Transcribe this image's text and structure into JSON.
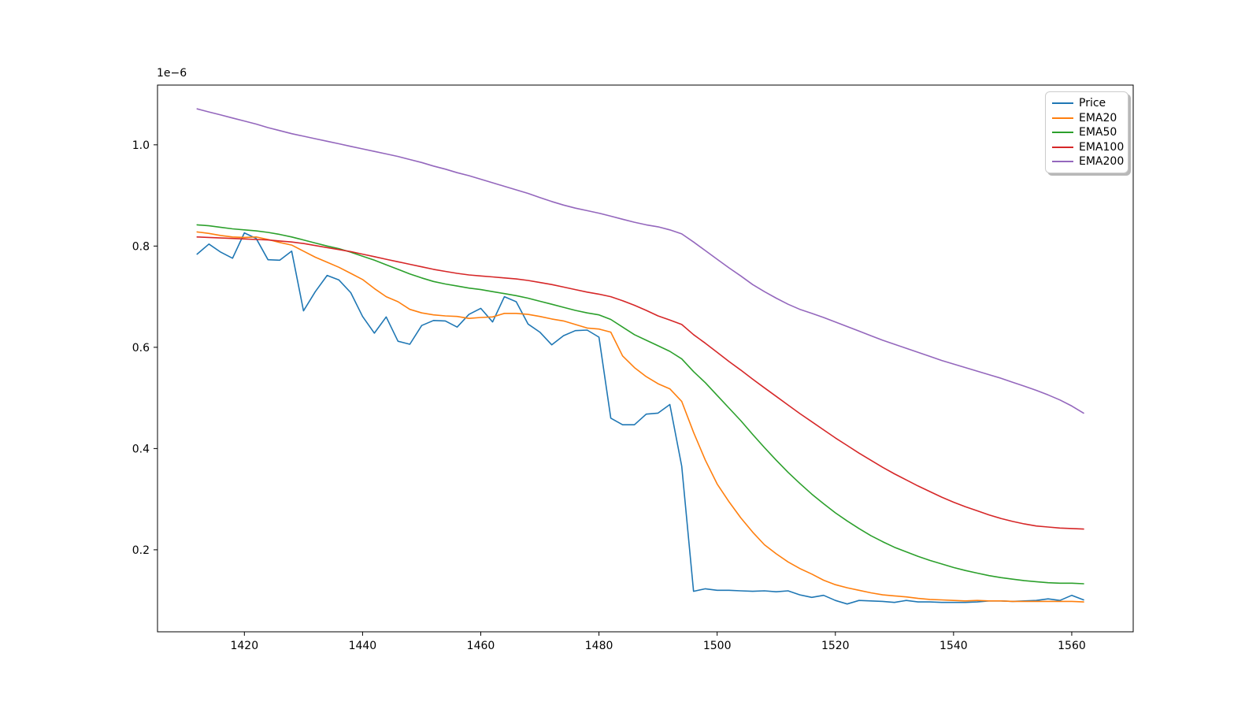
{
  "chart_data": {
    "type": "line",
    "title": "",
    "xlabel": "",
    "ylabel": "",
    "y_offset_label": "1e−6",
    "grid": false,
    "legend_position": "upper right",
    "xlim": [
      1405.3,
      1570.4
    ],
    "ylim_1e6": [
      0.038,
      1.118
    ],
    "x_ticks": [
      1420,
      1440,
      1460,
      1480,
      1500,
      1520,
      1540,
      1560
    ],
    "x_tick_labels": [
      "1420",
      "1440",
      "1460",
      "1480",
      "1500",
      "1520",
      "1540",
      "1560"
    ],
    "y_ticks_1e6": [
      0.2,
      0.4,
      0.6,
      0.8,
      1.0
    ],
    "y_tick_labels": [
      "0.2",
      "0.4",
      "0.6",
      "0.8",
      "1.0"
    ],
    "x": [
      1412,
      1414,
      1416,
      1418,
      1420,
      1422,
      1424,
      1426,
      1428,
      1430,
      1432,
      1434,
      1436,
      1438,
      1440,
      1442,
      1444,
      1446,
      1448,
      1450,
      1452,
      1454,
      1456,
      1458,
      1460,
      1462,
      1464,
      1466,
      1468,
      1470,
      1472,
      1474,
      1476,
      1478,
      1480,
      1482,
      1484,
      1486,
      1488,
      1490,
      1492,
      1494,
      1496,
      1498,
      1500,
      1502,
      1504,
      1506,
      1508,
      1510,
      1512,
      1514,
      1516,
      1518,
      1520,
      1522,
      1524,
      1526,
      1528,
      1530,
      1532,
      1534,
      1536,
      1538,
      1540,
      1542,
      1544,
      1546,
      1548,
      1550,
      1552,
      1554,
      1556,
      1558,
      1560,
      1562
    ],
    "series": [
      {
        "name": "Price",
        "color": "#1f77b4",
        "values_1e6": [
          0.784,
          0.804,
          0.788,
          0.776,
          0.826,
          0.815,
          0.773,
          0.772,
          0.79,
          0.672,
          0.71,
          0.742,
          0.733,
          0.708,
          0.661,
          0.628,
          0.66,
          0.612,
          0.606,
          0.643,
          0.653,
          0.652,
          0.64,
          0.665,
          0.677,
          0.65,
          0.7,
          0.69,
          0.646,
          0.63,
          0.605,
          0.623,
          0.633,
          0.634,
          0.62,
          0.46,
          0.447,
          0.447,
          0.468,
          0.47,
          0.487,
          0.365,
          0.118,
          0.123,
          0.12,
          0.12,
          0.119,
          0.118,
          0.119,
          0.117,
          0.119,
          0.111,
          0.106,
          0.11,
          0.1,
          0.093,
          0.1,
          0.099,
          0.098,
          0.096,
          0.1,
          0.097,
          0.097,
          0.096,
          0.096,
          0.096,
          0.097,
          0.099,
          0.099,
          0.098,
          0.099,
          0.1,
          0.103,
          0.1,
          0.11,
          0.101
        ]
      },
      {
        "name": "EMA20",
        "color": "#ff7f0e",
        "values_1e6": [
          0.828,
          0.825,
          0.821,
          0.818,
          0.817,
          0.818,
          0.813,
          0.807,
          0.802,
          0.79,
          0.778,
          0.768,
          0.758,
          0.746,
          0.734,
          0.716,
          0.7,
          0.69,
          0.675,
          0.668,
          0.664,
          0.662,
          0.661,
          0.657,
          0.659,
          0.66,
          0.667,
          0.667,
          0.665,
          0.661,
          0.656,
          0.652,
          0.645,
          0.638,
          0.636,
          0.63,
          0.583,
          0.56,
          0.542,
          0.528,
          0.518,
          0.493,
          0.432,
          0.377,
          0.33,
          0.295,
          0.263,
          0.235,
          0.21,
          0.192,
          0.176,
          0.163,
          0.152,
          0.14,
          0.131,
          0.125,
          0.12,
          0.115,
          0.111,
          0.109,
          0.107,
          0.104,
          0.102,
          0.101,
          0.1,
          0.099,
          0.1,
          0.099,
          0.099,
          0.098,
          0.098,
          0.098,
          0.098,
          0.098,
          0.098,
          0.097
        ]
      },
      {
        "name": "EMA50",
        "color": "#2ca02c",
        "values_1e6": [
          0.842,
          0.84,
          0.837,
          0.834,
          0.832,
          0.83,
          0.827,
          0.823,
          0.818,
          0.812,
          0.806,
          0.8,
          0.795,
          0.788,
          0.78,
          0.772,
          0.763,
          0.754,
          0.745,
          0.737,
          0.73,
          0.725,
          0.721,
          0.717,
          0.714,
          0.71,
          0.706,
          0.702,
          0.697,
          0.691,
          0.685,
          0.679,
          0.673,
          0.668,
          0.664,
          0.655,
          0.64,
          0.625,
          0.614,
          0.603,
          0.592,
          0.577,
          0.552,
          0.53,
          0.505,
          0.48,
          0.455,
          0.428,
          0.402,
          0.377,
          0.353,
          0.331,
          0.31,
          0.291,
          0.273,
          0.257,
          0.242,
          0.228,
          0.216,
          0.205,
          0.196,
          0.187,
          0.179,
          0.172,
          0.165,
          0.159,
          0.154,
          0.149,
          0.145,
          0.142,
          0.139,
          0.137,
          0.135,
          0.134,
          0.134,
          0.133
        ]
      },
      {
        "name": "EMA100",
        "color": "#d62728",
        "values_1e6": [
          0.818,
          0.817,
          0.816,
          0.815,
          0.814,
          0.813,
          0.812,
          0.81,
          0.808,
          0.805,
          0.801,
          0.797,
          0.793,
          0.789,
          0.784,
          0.779,
          0.774,
          0.769,
          0.764,
          0.759,
          0.754,
          0.75,
          0.746,
          0.743,
          0.741,
          0.739,
          0.737,
          0.735,
          0.732,
          0.728,
          0.724,
          0.719,
          0.714,
          0.709,
          0.705,
          0.7,
          0.692,
          0.683,
          0.673,
          0.662,
          0.654,
          0.645,
          0.625,
          0.608,
          0.59,
          0.572,
          0.555,
          0.537,
          0.52,
          0.503,
          0.486,
          0.469,
          0.453,
          0.437,
          0.421,
          0.406,
          0.391,
          0.377,
          0.363,
          0.35,
          0.338,
          0.326,
          0.315,
          0.304,
          0.294,
          0.285,
          0.277,
          0.269,
          0.262,
          0.256,
          0.251,
          0.247,
          0.245,
          0.243,
          0.242,
          0.241
        ]
      },
      {
        "name": "EMA200",
        "color": "#9467bd",
        "values_1e6": [
          1.071,
          1.065,
          1.059,
          1.053,
          1.047,
          1.041,
          1.034,
          1.028,
          1.022,
          1.017,
          1.012,
          1.007,
          1.002,
          0.997,
          0.992,
          0.987,
          0.982,
          0.977,
          0.971,
          0.965,
          0.958,
          0.952,
          0.945,
          0.939,
          0.932,
          0.925,
          0.918,
          0.911,
          0.904,
          0.896,
          0.888,
          0.881,
          0.875,
          0.87,
          0.865,
          0.859,
          0.853,
          0.847,
          0.842,
          0.838,
          0.832,
          0.824,
          0.808,
          0.791,
          0.774,
          0.757,
          0.741,
          0.724,
          0.71,
          0.697,
          0.685,
          0.675,
          0.667,
          0.659,
          0.65,
          0.641,
          0.632,
          0.623,
          0.614,
          0.606,
          0.598,
          0.59,
          0.582,
          0.574,
          0.567,
          0.56,
          0.553,
          0.546,
          0.539,
          0.531,
          0.523,
          0.515,
          0.506,
          0.496,
          0.484,
          0.47
        ]
      }
    ]
  }
}
